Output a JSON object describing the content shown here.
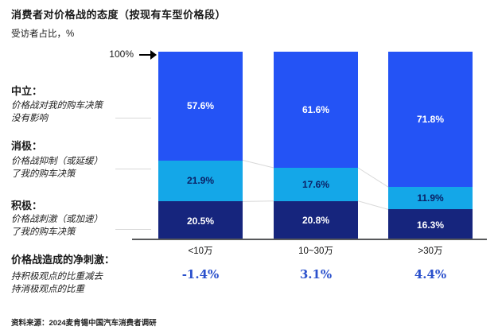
{
  "title": "消费者对价格战的态度（按现有车型价格段）",
  "subtitle": "受访者占比，%",
  "axis_marker_label": "100%",
  "side_labels": {
    "neutral_header": "中立：",
    "neutral_desc": "价格战对我的购车决策\n没有影响",
    "negative_header": "消极：",
    "negative_desc": "价格战抑制（或延缓）\n了我的购车决策",
    "positive_header": "积极：",
    "positive_desc": "价格战刺激（或加速）\n了我的购车决策"
  },
  "net_section": {
    "header": "价格战造成的净刺激：",
    "desc": "持积极观点的比重减去\n持消极观点的比重",
    "value_color": "#2a50cc"
  },
  "source": "资料来源：2024麦肯锡中国汽车消费者调研",
  "chart_data": {
    "type": "bar",
    "stacked": true,
    "unit": "%",
    "title": "消费者对价格战的态度（按现有车型价格段）",
    "ylabel": "受访者占比，%",
    "ylim": [
      0,
      100
    ],
    "grid": false,
    "legend_position": "left-annotations",
    "categories": [
      "<10万",
      "10~30万",
      ">30万"
    ],
    "series": [
      {
        "name": "中立：价格战对我的购车决策没有影响",
        "values": [
          57.6,
          61.6,
          71.8
        ],
        "color": "#2453f5",
        "text_color": "#ffffff"
      },
      {
        "name": "消极：价格战抑制（或延缓）了我的购车决策",
        "values": [
          21.9,
          17.6,
          11.9
        ],
        "color": "#14a7e8",
        "text_color": "#0b2166"
      },
      {
        "name": "积极：价格战刺激（或加速）了我的购车决策",
        "values": [
          20.5,
          20.8,
          16.3
        ],
        "color": "#16257d",
        "text_color": "#ffffff"
      }
    ],
    "net_values": [
      "-1.4%",
      "3.1%",
      "4.4%"
    ],
    "annotations": [
      "100% →"
    ]
  }
}
